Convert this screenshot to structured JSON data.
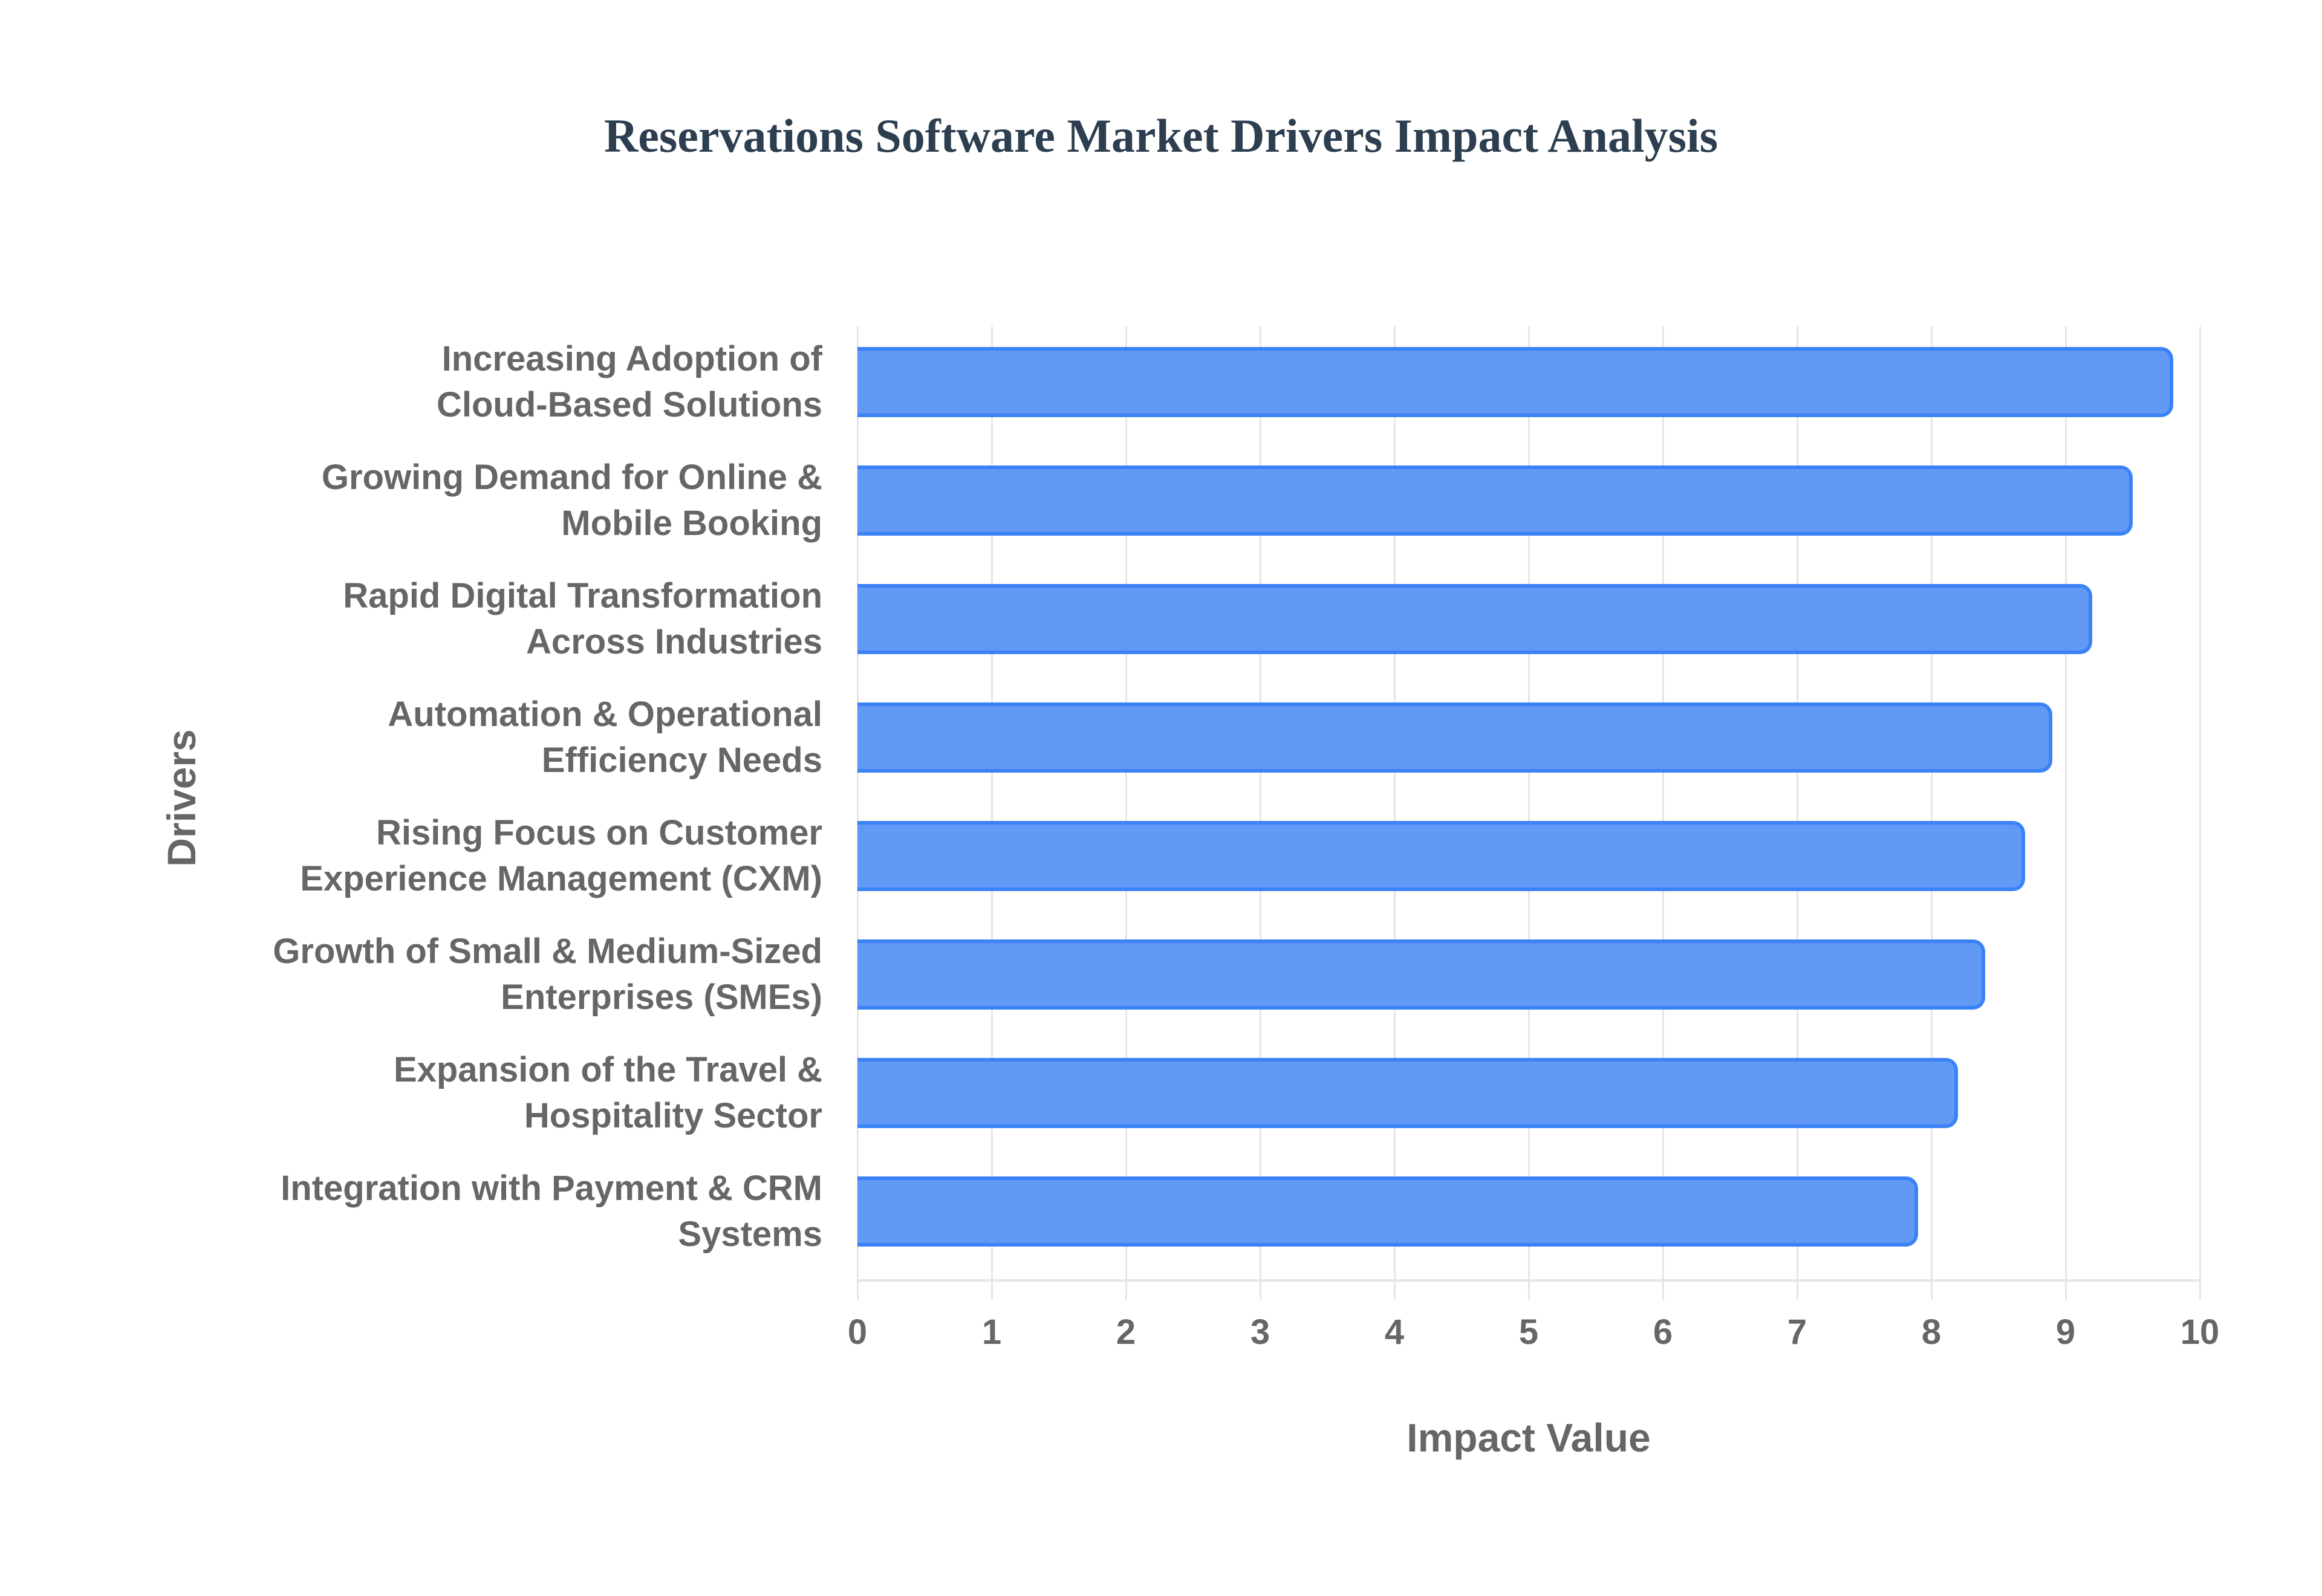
{
  "title": "Reservations Software Market Drivers Impact Analysis",
  "colors": {
    "bar_fill": "#6199f4",
    "bar_border": "#3b82f6",
    "title": "#2c3e50",
    "axis_text": "#666666"
  },
  "chart_data": {
    "type": "bar",
    "orientation": "horizontal",
    "title": "Reservations Software Market Drivers Impact Analysis",
    "xlabel": "Impact Value",
    "ylabel": "Drivers",
    "xlim": [
      0,
      10
    ],
    "xticks": [
      "0",
      "1",
      "2",
      "3",
      "4",
      "5",
      "6",
      "7",
      "8",
      "9",
      "10"
    ],
    "grid": true,
    "legend": null,
    "categories": [
      "Increasing Adoption of Cloud-Based Solutions",
      "Growing Demand for Online & Mobile Booking",
      "Rapid Digital Transformation Across Industries",
      "Automation & Operational Efficiency Needs",
      "Rising Focus on Customer Experience Management (CXM)",
      "Growth of Small & Medium-Sized Enterprises (SMEs)",
      "Expansion of the Travel & Hospitality Sector",
      "Integration with Payment & CRM Systems"
    ],
    "values": [
      9.8,
      9.5,
      9.2,
      8.9,
      8.7,
      8.4,
      8.2,
      7.9
    ]
  },
  "labels": [
    {
      "l1": "Increasing Adoption of",
      "l2": "Cloud-Based Solutions"
    },
    {
      "l1": "Growing Demand for Online &",
      "l2": "Mobile Booking"
    },
    {
      "l1": "Rapid Digital Transformation",
      "l2": "Across Industries"
    },
    {
      "l1": "Automation & Operational",
      "l2": "Efficiency Needs"
    },
    {
      "l1": "Rising Focus on Customer",
      "l2": "Experience Management (CXM)"
    },
    {
      "l1": "Growth of Small & Medium-Sized",
      "l2": "Enterprises (SMEs)"
    },
    {
      "l1": "Expansion of the Travel &",
      "l2": "Hospitality Sector"
    },
    {
      "l1": "Integration with Payment & CRM",
      "l2": "Systems"
    }
  ]
}
